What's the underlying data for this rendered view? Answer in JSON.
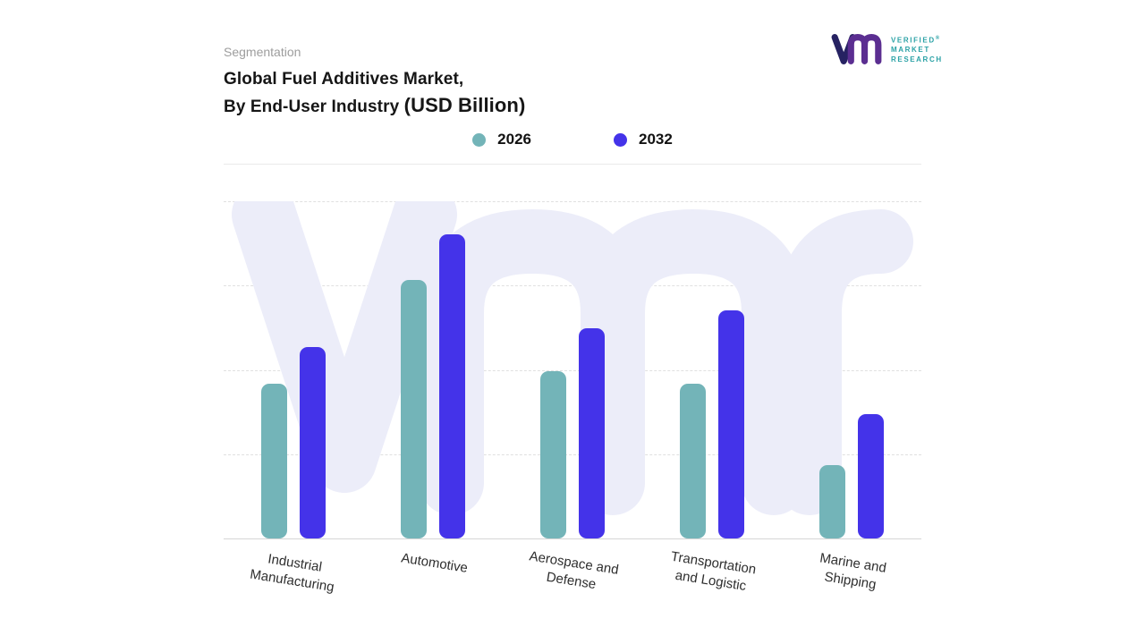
{
  "header": {
    "eyebrow": "Segmentation",
    "title_line1": "Global Fuel Additives Market,",
    "title_line2": "By End-User Industry",
    "title_unit": "(USD Billion)"
  },
  "brand": {
    "name_lines": [
      "VERIFIED",
      "MARKET",
      "RESEARCH"
    ],
    "registered_mark": "®",
    "text_color": "#2ba2a6"
  },
  "chart_data": {
    "type": "bar",
    "title": "Global Fuel Additives Market, By End-User Industry (USD Billion)",
    "categories": [
      "Industrial Manufacturing",
      "Automotive",
      "Aerospace and Defense",
      "Transportation and Logistic",
      "Marine and Shipping"
    ],
    "category_label_lines": [
      [
        "Industrial",
        "Manufacturing"
      ],
      [
        "Automotive"
      ],
      [
        "Aerospace and",
        "Defense"
      ],
      [
        "Transportation",
        "and Logistic"
      ],
      [
        "Marine and",
        "Shipping"
      ]
    ],
    "series": [
      {
        "name": "2026",
        "color": "#73b4b8",
        "values": [
          51,
          85,
          55,
          51,
          24
        ]
      },
      {
        "name": "2032",
        "color": "#4433e9",
        "values": [
          63,
          100,
          69,
          75,
          41
        ]
      }
    ],
    "value_axis": {
      "visible": false,
      "ylim": [
        0,
        100
      ],
      "note": "no numeric axis labels shown; values estimated relative to tallest bar = 100"
    },
    "grid": {
      "horizontal_dashed_lines": 4,
      "baseline": true
    },
    "legend_position": "top-center"
  }
}
